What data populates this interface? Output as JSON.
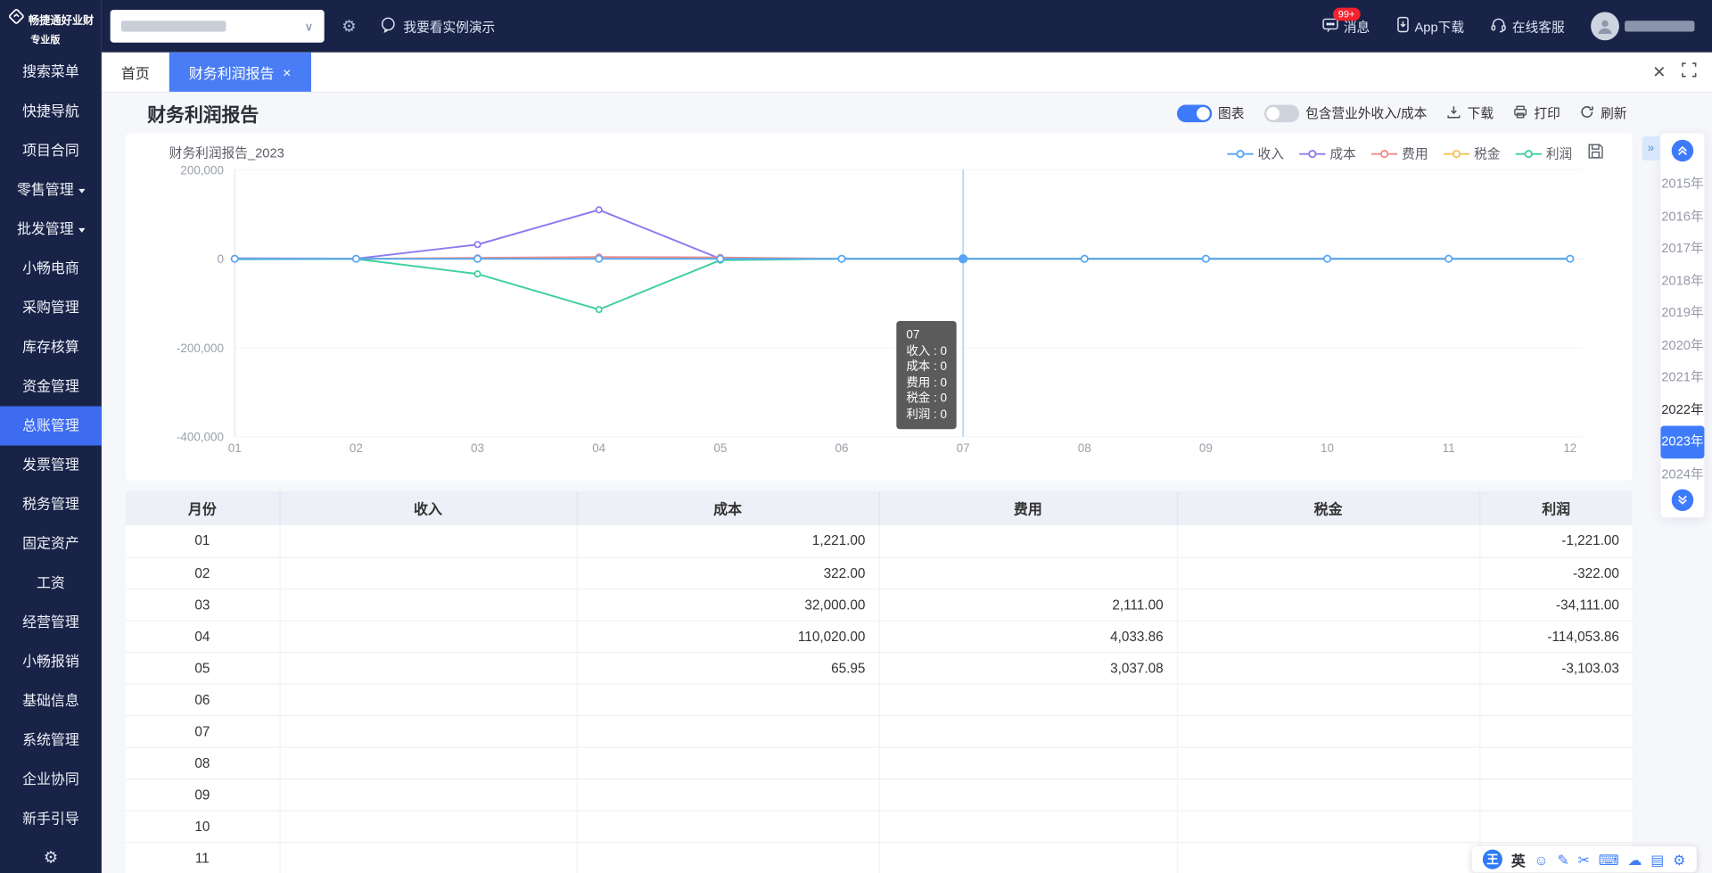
{
  "brand": {
    "line1": "畅捷通好业财",
    "line2": "专业版"
  },
  "topbar": {
    "demo": "我要看实例演示",
    "messages": "消息",
    "badge": "99+",
    "app_download": "App下载",
    "support": "在线客服"
  },
  "sidebar": {
    "items": [
      {
        "label": "搜索菜单"
      },
      {
        "label": "快捷导航"
      },
      {
        "label": "项目合同"
      },
      {
        "label": "零售管理",
        "caret": true
      },
      {
        "label": "批发管理",
        "caret": true
      },
      {
        "label": "小畅电商"
      },
      {
        "label": "采购管理"
      },
      {
        "label": "库存核算"
      },
      {
        "label": "资金管理"
      },
      {
        "label": "总账管理",
        "active": true
      },
      {
        "label": "发票管理"
      },
      {
        "label": "税务管理"
      },
      {
        "label": "固定资产"
      },
      {
        "label": "工资"
      },
      {
        "label": "经营管理"
      },
      {
        "label": "小畅报销"
      },
      {
        "label": "基础信息"
      },
      {
        "label": "系统管理"
      },
      {
        "label": "企业协同"
      },
      {
        "label": "新手引导"
      }
    ]
  },
  "tabs": [
    {
      "label": "首页",
      "active": false,
      "closable": false
    },
    {
      "label": "财务利润报告",
      "active": true,
      "closable": true
    }
  ],
  "page": {
    "title": "财务利润报告",
    "toggle_chart": {
      "label": "图表",
      "on": true
    },
    "toggle_nonop": {
      "label": "包含营业外收入/成本",
      "on": false
    },
    "actions": {
      "download": "下载",
      "print": "打印",
      "refresh": "刷新"
    }
  },
  "chart_data": {
    "type": "line",
    "title": "财务利润报告_2023",
    "categories": [
      "01",
      "02",
      "03",
      "04",
      "05",
      "06",
      "07",
      "08",
      "09",
      "10",
      "11",
      "12"
    ],
    "ylim": [
      -400000,
      200000
    ],
    "yticks": [
      200000,
      0,
      -200000,
      -400000
    ],
    "ytick_labels": [
      "200,000",
      "0",
      "-200,000",
      "-400,000"
    ],
    "legend_position": "top-right",
    "grid": false,
    "series": [
      {
        "name": "收入",
        "color": "#55a6f5",
        "values": [
          0,
          0,
          0,
          0,
          0,
          0,
          0,
          0,
          0,
          0,
          0,
          0
        ]
      },
      {
        "name": "成本",
        "color": "#8b7cf0",
        "values": [
          1221,
          322,
          32000,
          110020,
          65.95,
          0,
          0,
          0,
          0,
          0,
          0,
          0
        ]
      },
      {
        "name": "费用",
        "color": "#f08a8a",
        "values": [
          0,
          0,
          2111,
          4033.86,
          3037.08,
          0,
          0,
          0,
          0,
          0,
          0,
          0
        ]
      },
      {
        "name": "税金",
        "color": "#f5c25a",
        "values": [
          0,
          0,
          0,
          0,
          0,
          0,
          0,
          0,
          0,
          0,
          0,
          0
        ]
      },
      {
        "name": "利润",
        "color": "#3ecfa3",
        "values": [
          -1221,
          -322,
          -34111,
          -114053.86,
          -3103.03,
          0,
          0,
          0,
          0,
          0,
          0,
          0
        ]
      }
    ],
    "active_index": 6,
    "tooltip": {
      "title": "07",
      "rows": [
        {
          "label": "收入",
          "value": "0"
        },
        {
          "label": "成本",
          "value": "0"
        },
        {
          "label": "费用",
          "value": "0"
        },
        {
          "label": "税金",
          "value": "0"
        },
        {
          "label": "利润",
          "value": "0"
        }
      ]
    }
  },
  "years": {
    "items": [
      "2015年",
      "2016年",
      "2017年",
      "2018年",
      "2019年",
      "2020年",
      "2021年",
      "2022年",
      "2023年",
      "2024年"
    ],
    "active": "2023年",
    "strong": "2022年"
  },
  "table": {
    "headers": [
      "月份",
      "收入",
      "成本",
      "费用",
      "税金",
      "利润"
    ],
    "rows": [
      [
        "01",
        "",
        "1,221.00",
        "",
        "",
        "-1,221.00"
      ],
      [
        "02",
        "",
        "322.00",
        "",
        "",
        "-322.00"
      ],
      [
        "03",
        "",
        "32,000.00",
        "2,111.00",
        "",
        "-34,111.00"
      ],
      [
        "04",
        "",
        "110,020.00",
        "4,033.86",
        "",
        "-114,053.86"
      ],
      [
        "05",
        "",
        "65.95",
        "3,037.08",
        "",
        "-3,103.03"
      ],
      [
        "06",
        "",
        "",
        "",
        "",
        ""
      ],
      [
        "07",
        "",
        "",
        "",
        "",
        ""
      ],
      [
        "08",
        "",
        "",
        "",
        "",
        ""
      ],
      [
        "09",
        "",
        "",
        "",
        "",
        ""
      ],
      [
        "10",
        "",
        "",
        "",
        "",
        ""
      ],
      [
        "11",
        "",
        "",
        "",
        "",
        ""
      ]
    ]
  },
  "ime": {
    "logo": "王",
    "lang": "英"
  }
}
